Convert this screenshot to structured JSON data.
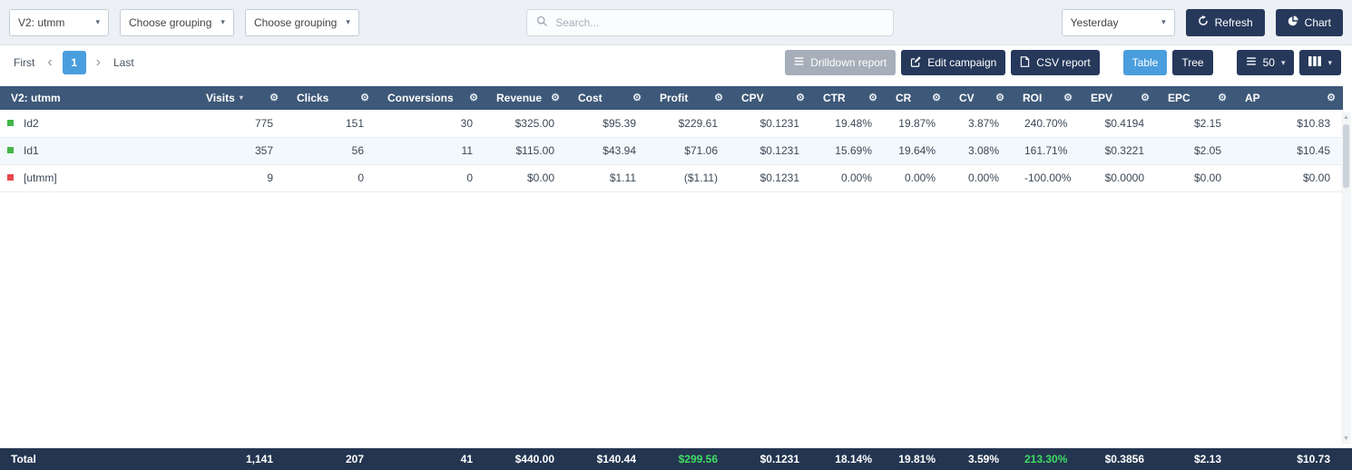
{
  "toolbar": {
    "campaign_dropdown": {
      "value": "V2: utmm"
    },
    "grouping_dropdown_1": {
      "value": "Choose grouping"
    },
    "grouping_dropdown_2": {
      "value": "Choose grouping"
    },
    "search": {
      "placeholder": "Search..."
    },
    "date_dropdown": {
      "value": "Yesterday"
    },
    "refresh_button": "Refresh",
    "chart_button": "Chart"
  },
  "pagination": {
    "first_label": "First",
    "current_page": "1",
    "last_label": "Last"
  },
  "actions": {
    "drilldown_button": "Drilldown report",
    "edit_campaign_button": "Edit campaign",
    "csv_button": "CSV report",
    "table_toggle": "Table",
    "tree_toggle": "Tree",
    "rows_per_page": "50"
  },
  "icons": {
    "caret": "▾",
    "sort_desc": "▾",
    "gear": "⚙",
    "chevron_left": "‹",
    "chevron_right": "›",
    "scroll_up": "▲",
    "scroll_down": "▼"
  },
  "colors": {
    "navy": "#26395b",
    "blue": "#4a9ede",
    "header_bg": "#3d5878",
    "total_bg": "#243550",
    "green": "#23a93d",
    "red": "#e8484d",
    "green_on_dark": "#3fdd63",
    "indicator_green": "#43b649",
    "indicator_red": "#e8484d"
  },
  "table": {
    "columns": [
      {
        "label": "V2: utmm"
      },
      {
        "label": "Visits",
        "sorted": "desc"
      },
      {
        "label": "Clicks"
      },
      {
        "label": "Conversions"
      },
      {
        "label": "Revenue"
      },
      {
        "label": "Cost"
      },
      {
        "label": "Profit"
      },
      {
        "label": "CPV"
      },
      {
        "label": "CTR"
      },
      {
        "label": "CR"
      },
      {
        "label": "CV"
      },
      {
        "label": "ROI"
      },
      {
        "label": "EPV"
      },
      {
        "label": "EPC"
      },
      {
        "label": "AP"
      }
    ],
    "rows": [
      {
        "indicator": "green",
        "positive": true,
        "cells": [
          "Id2",
          "775",
          "151",
          "30",
          "$325.00",
          "$95.39",
          "$229.61",
          "$0.1231",
          "19.48%",
          "19.87%",
          "3.87%",
          "240.70%",
          "$0.4194",
          "$2.15",
          "$10.83"
        ]
      },
      {
        "indicator": "green",
        "positive": true,
        "cells": [
          "Id1",
          "357",
          "56",
          "11",
          "$115.00",
          "$43.94",
          "$71.06",
          "$0.1231",
          "15.69%",
          "19.64%",
          "3.08%",
          "161.71%",
          "$0.3221",
          "$2.05",
          "$10.45"
        ]
      },
      {
        "indicator": "red",
        "positive": false,
        "cells": [
          "[utmm]",
          "9",
          "0",
          "0",
          "$0.00",
          "$1.11",
          "($1.11)",
          "$0.1231",
          "0.00%",
          "0.00%",
          "0.00%",
          "-100.00%",
          "$0.0000",
          "$0.00",
          "$0.00"
        ]
      }
    ],
    "total": {
      "label": "Total",
      "cells": [
        "1,141",
        "207",
        "41",
        "$440.00",
        "$140.44",
        "$299.56",
        "$0.1231",
        "18.14%",
        "19.81%",
        "3.59%",
        "213.30%",
        "$0.3856",
        "$2.13",
        "$10.73"
      ]
    }
  }
}
